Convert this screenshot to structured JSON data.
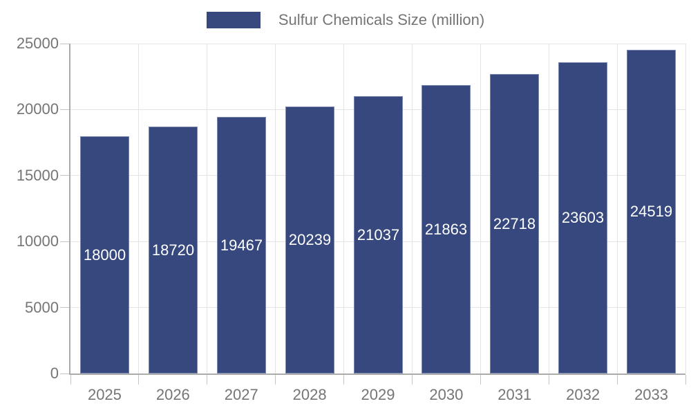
{
  "legend": {
    "label": "Sulfur Chemicals Size (million)"
  },
  "chart_data": {
    "type": "bar",
    "title": "",
    "xlabel": "",
    "ylabel": "",
    "series_name": "Sulfur Chemicals Size (million)",
    "categories": [
      "2025",
      "2026",
      "2027",
      "2028",
      "2029",
      "2030",
      "2031",
      "2032",
      "2033"
    ],
    "values": [
      18000,
      18720,
      19467,
      20239,
      21037,
      21863,
      22718,
      23603,
      24519
    ],
    "data_labels_visible": true,
    "ylim": [
      0,
      25000
    ],
    "yticks": [
      0,
      5000,
      10000,
      15000,
      20000,
      25000
    ],
    "grid": true,
    "legend_position": "top"
  },
  "colors": {
    "bar_fill": "#36487E",
    "bar_border": "#7E88B5",
    "axis_line": "#ABABAB",
    "gridline": "#E4E4E4",
    "tick": "#C4C4C4",
    "axis_text": "#757575",
    "legend_text": "#757575",
    "bar_label_text": "#FFFFFF",
    "background": "#FFFFFF"
  }
}
